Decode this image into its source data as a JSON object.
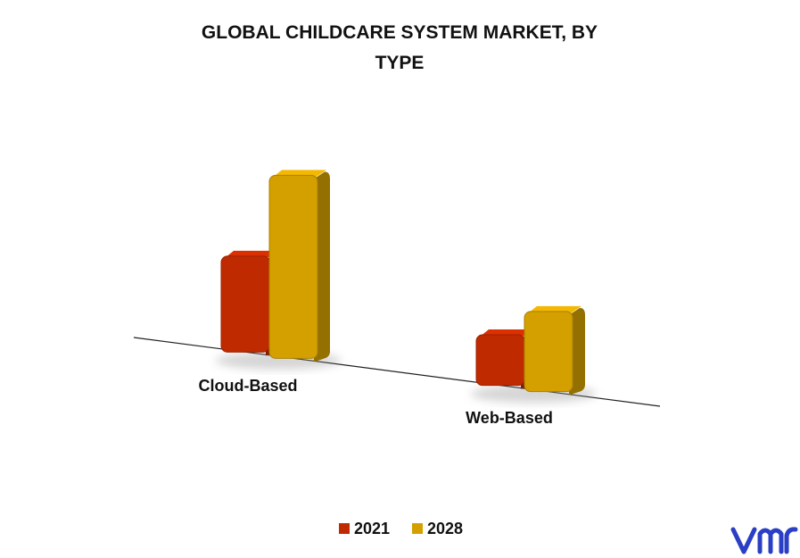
{
  "chart_data": {
    "type": "bar3d",
    "title": "GLOBAL CHILDCARE SYSTEM MARKET, BY TYPE",
    "categories": [
      "Cloud-Based",
      "Web-Based"
    ],
    "series": [
      {
        "name": "2021",
        "color": "#c02a00",
        "values": [
          110,
          58
        ]
      },
      {
        "name": "2028",
        "color": "#d4a000",
        "values": [
          210,
          92
        ]
      }
    ],
    "legend": "bottom"
  }
}
